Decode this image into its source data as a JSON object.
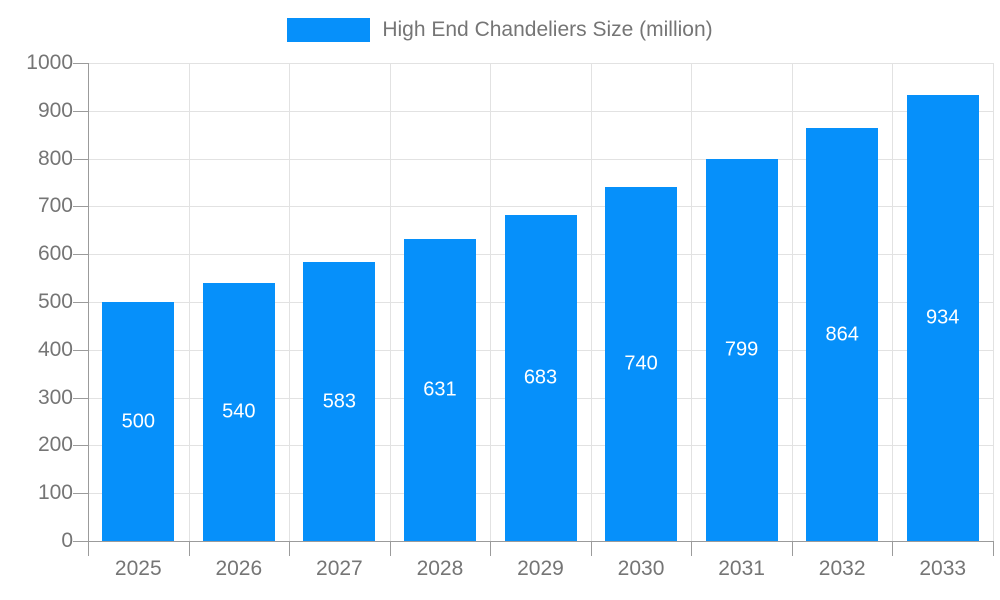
{
  "legend": {
    "label": "High End Chandeliers Size (million)"
  },
  "colors": {
    "bar": "#0690fa",
    "axis": "#9b9b9b",
    "grid": "#e2e2e2",
    "tick_label": "#757575",
    "bar_label": "#ffffff"
  },
  "chart_data": {
    "type": "bar",
    "title": "High End Chandeliers Size (million)",
    "categories": [
      "2025",
      "2026",
      "2027",
      "2028",
      "2029",
      "2030",
      "2031",
      "2032",
      "2033"
    ],
    "values": [
      500,
      540,
      583,
      631,
      683,
      740,
      799,
      864,
      934
    ],
    "xlabel": "",
    "ylabel": "",
    "ylim": [
      0,
      1000
    ],
    "ytick_step": 100,
    "ytick_labels": [
      "0",
      "100",
      "200",
      "300",
      "400",
      "500",
      "600",
      "700",
      "800",
      "900",
      "1000"
    ],
    "grid": true,
    "legend_position": "top",
    "bar_label_position": "center"
  }
}
